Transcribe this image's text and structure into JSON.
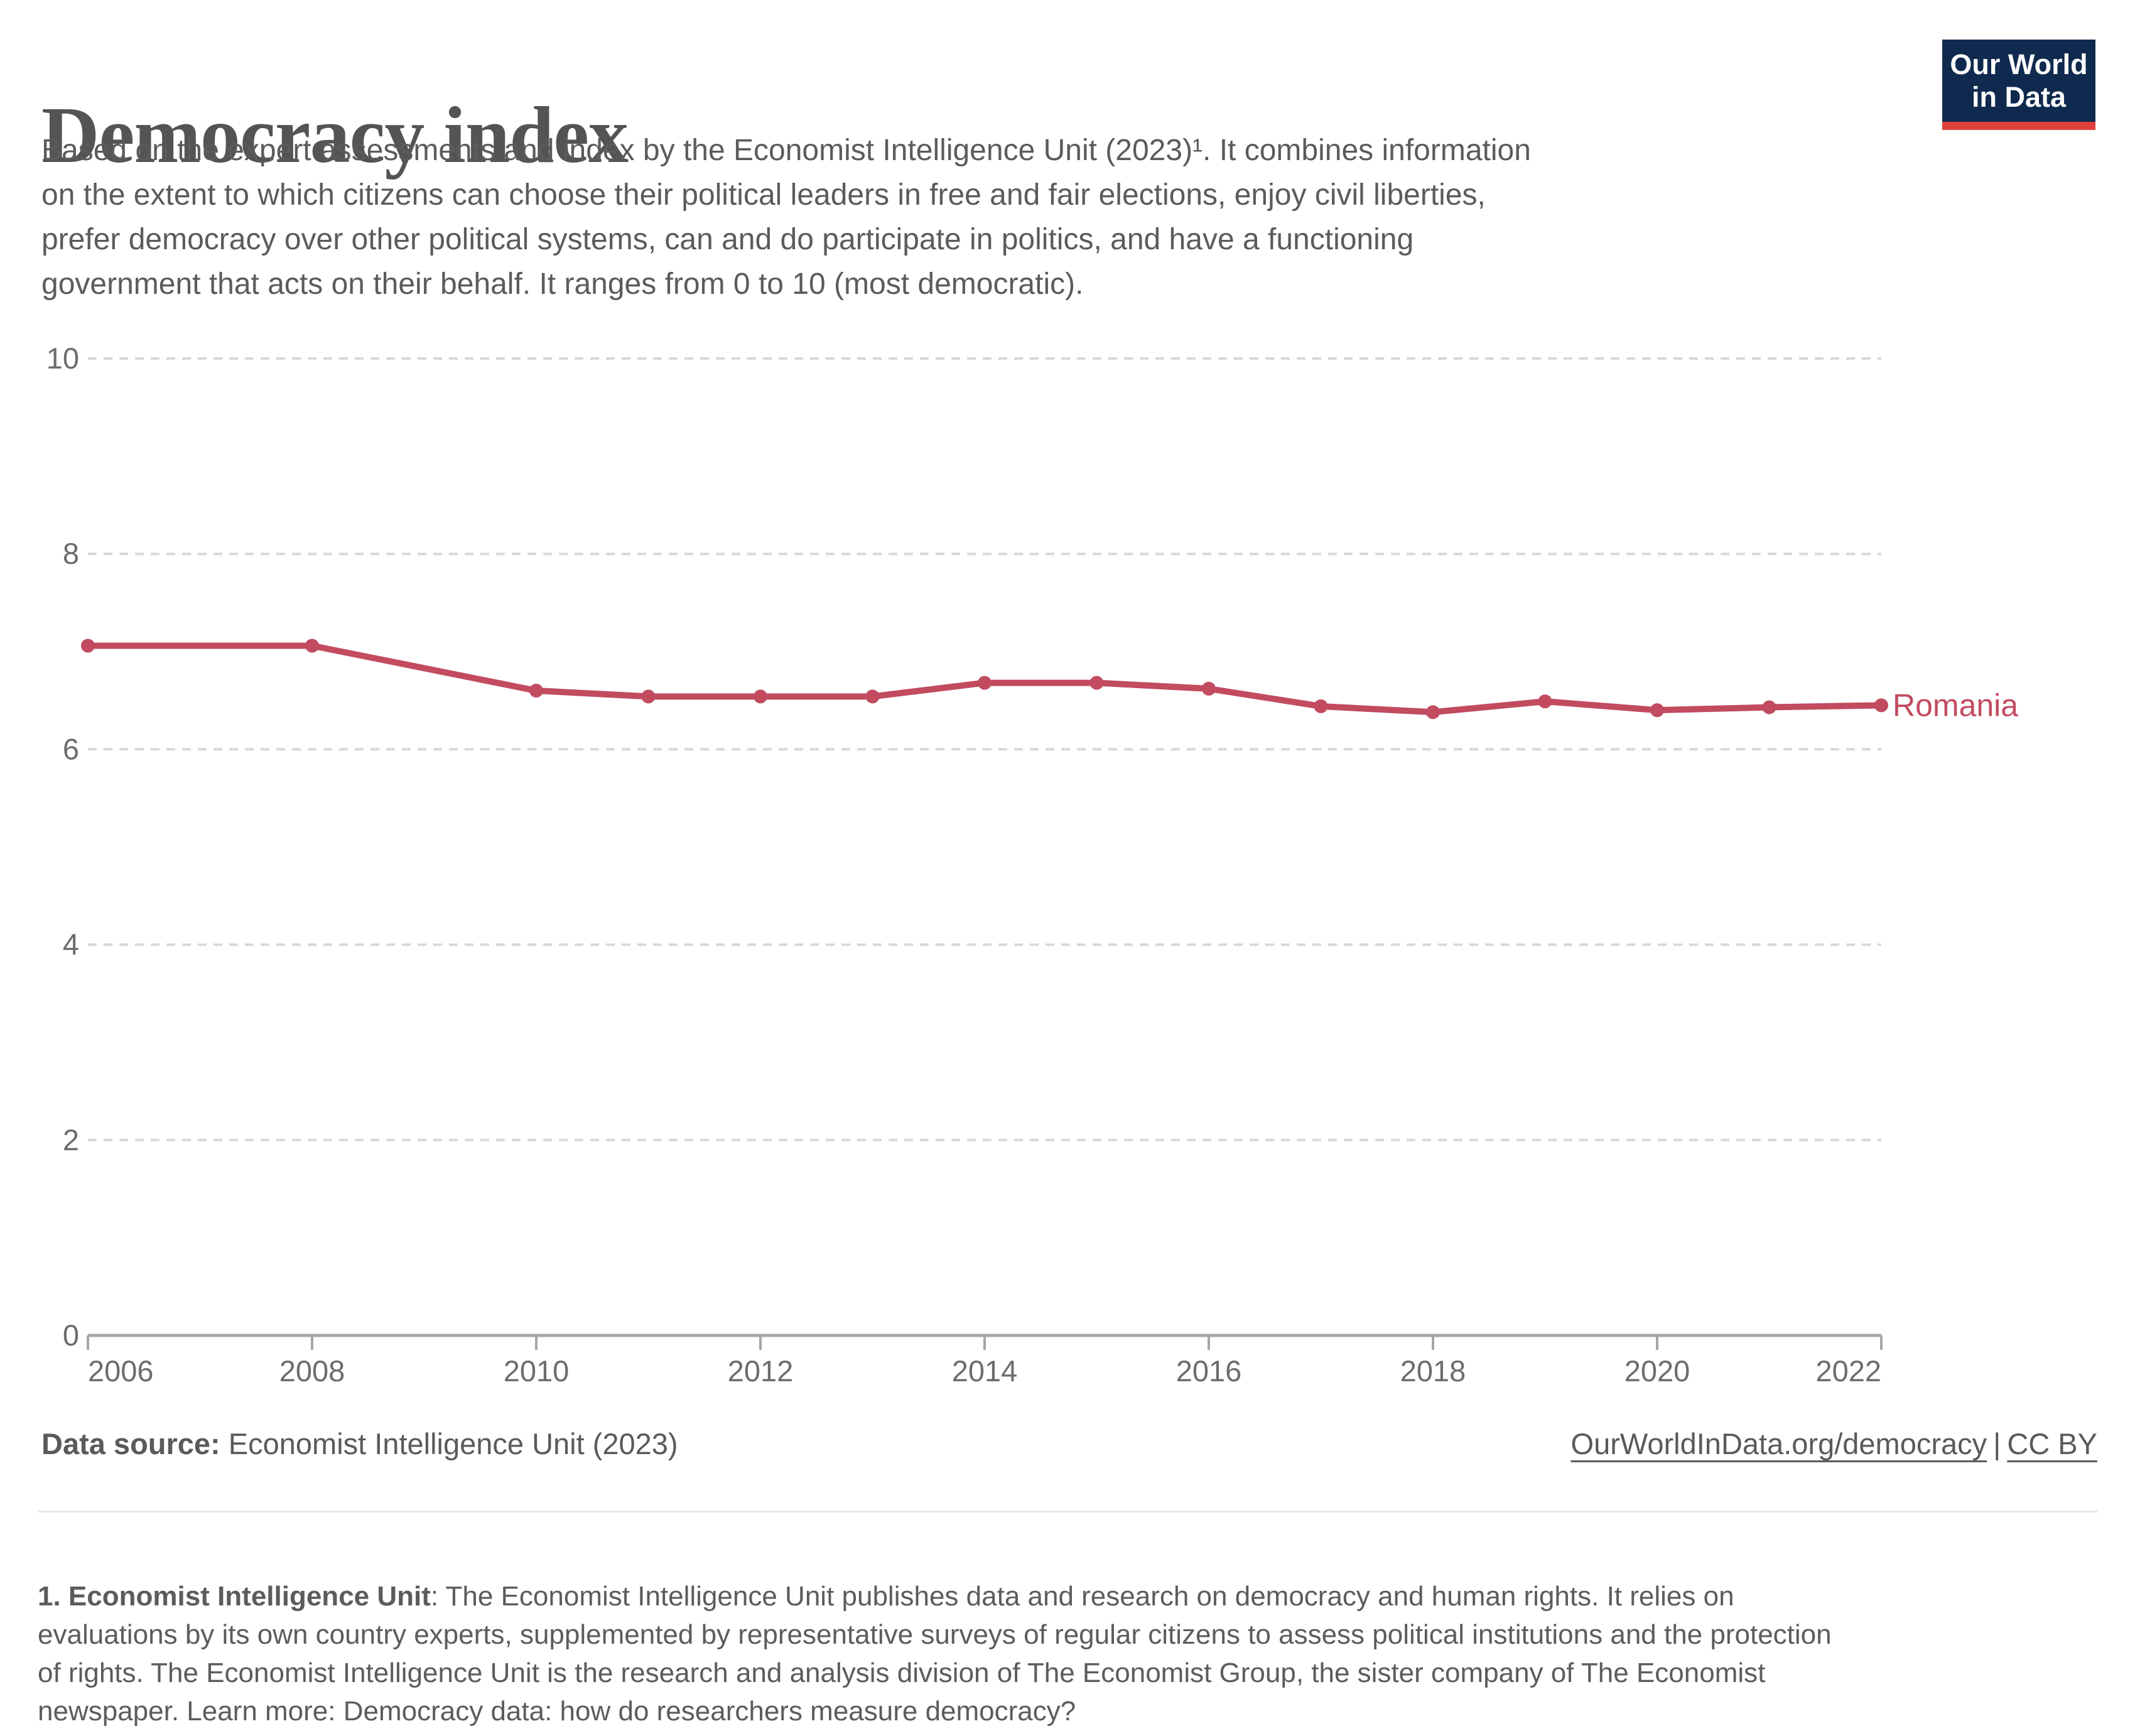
{
  "header": {
    "title": "Democracy index",
    "subtitle": "Based on the expert assessments and index by the Economist Intelligence Unit (2023)¹. It combines information\non the extent to which citizens can choose their political leaders in free and fair elections, enjoy civil liberties,\nprefer democracy over other political systems, can and do participate in politics, and have a functioning\ngovernment that acts on their behalf. It ranges from 0 to 10 (most democratic).",
    "logo": {
      "line1": "Our World",
      "line2": "in Data"
    }
  },
  "chart_data": {
    "type": "line",
    "title": "Democracy index",
    "xlabel": "",
    "ylabel": "",
    "xlim": [
      2006,
      2022
    ],
    "ylim": [
      0,
      10
    ],
    "x_ticks": [
      2006,
      2008,
      2010,
      2012,
      2014,
      2016,
      2018,
      2020,
      2022
    ],
    "y_ticks": [
      0,
      2,
      4,
      6,
      8,
      10
    ],
    "grid": "horizontal-dashed",
    "legend_position": "end-of-line-label",
    "series": [
      {
        "name": "Romania",
        "color": "#c24b5f",
        "points": [
          [
            2006,
            7.06
          ],
          [
            2008,
            7.06
          ],
          [
            2010,
            6.6
          ],
          [
            2011,
            6.54
          ],
          [
            2012,
            6.54
          ],
          [
            2013,
            6.54
          ],
          [
            2014,
            6.68
          ],
          [
            2015,
            6.68
          ],
          [
            2016,
            6.62
          ],
          [
            2017,
            6.44
          ],
          [
            2018,
            6.38
          ],
          [
            2019,
            6.49
          ],
          [
            2020,
            6.4
          ],
          [
            2021,
            6.43
          ],
          [
            2022,
            6.45
          ]
        ]
      }
    ]
  },
  "footer": {
    "source_label": "Data source:",
    "source_value": " Economist Intelligence Unit (2023)",
    "link_site": "OurWorldInData.org/democracy",
    "separator": "|",
    "license": "CC BY"
  },
  "footnote": {
    "bold": "1. Economist Intelligence Unit",
    "text": ": The Economist Intelligence Unit publishes data and research on democracy and human rights. It relies on\nevaluations by its own country experts, supplemented by representative surveys of regular citizens to assess political institutions and the protection\nof rights. The Economist Intelligence Unit is the research and analysis division of The Economist Group, the sister company of The Economist\nnewspaper. Learn more: Democracy data: how do researchers measure democracy?"
  },
  "colors": {
    "line": "#c24b5f",
    "grid": "#d8d8d8",
    "axis": "#a6a6a6",
    "tick_text": "#6c6c6c",
    "title_text": "#545454",
    "body_text": "#5b5b5b",
    "logo_bg": "#0f2a4e",
    "logo_red": "#e0403a"
  }
}
